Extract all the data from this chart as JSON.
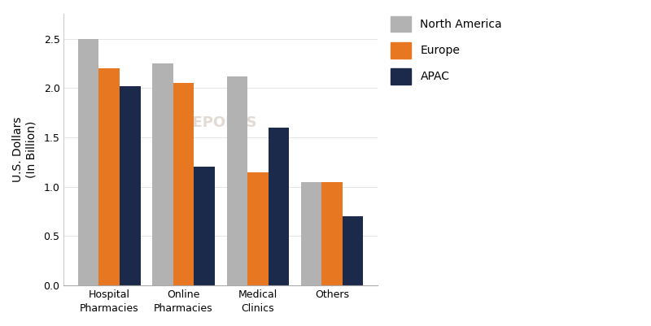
{
  "categories": [
    "Hospital\nPharmacies",
    "Online\nPharmacies",
    "Medical\nClinics",
    "Others"
  ],
  "series": {
    "North America": [
      2.5,
      2.25,
      2.12,
      1.05
    ],
    "Europe": [
      2.2,
      2.05,
      1.15,
      1.05
    ],
    "APAC": [
      2.02,
      1.2,
      1.6,
      0.7
    ]
  },
  "colors": {
    "North America": "#b2b2b2",
    "Europe": "#e87722",
    "APAC": "#1b2a4a"
  },
  "ylabel": "U.S. Dollars\n(In Billion)",
  "ylim": [
    0,
    2.75
  ],
  "yticks": [
    0.0,
    0.5,
    1.0,
    1.5,
    2.0,
    2.5
  ],
  "legend_order": [
    "North America",
    "Europe",
    "APAC"
  ],
  "bar_width": 0.28,
  "background_color": "#ffffff",
  "tick_fontsize": 9,
  "legend_fontsize": 10,
  "ylabel_fontsize": 10
}
